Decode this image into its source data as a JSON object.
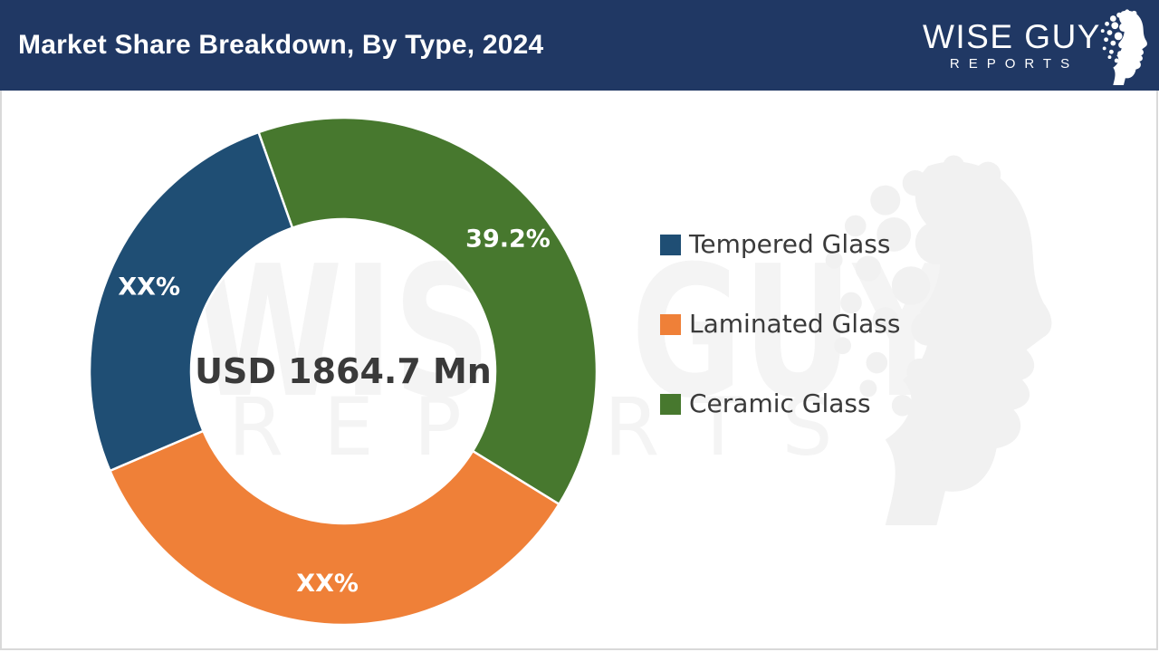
{
  "header": {
    "title": "Market Share Breakdown, By Type, 2024",
    "bg_color": "#203864",
    "logo": {
      "line1": "WISE GUY",
      "line2": "REPORTS"
    }
  },
  "watermark": {
    "line1": "WISE GUY",
    "line2": "REPORTS"
  },
  "chart_data": {
    "type": "pie",
    "subtype": "donut",
    "title": "Market Share Breakdown, By Type, 2024",
    "center_label": "USD 1864.7 Mn",
    "legend_position": "right",
    "start_angle": -19.5,
    "segments": [
      {
        "name": "Ceramic Glass",
        "pct": 39.2,
        "display_label": "39.2%",
        "color": "#47782e"
      },
      {
        "name": "Laminated Glass",
        "pct": 34.8,
        "display_label": "XX%",
        "color": "#ef8038"
      },
      {
        "name": "Tempered Glass",
        "pct": 26.0,
        "display_label": "XX%",
        "color": "#1f4e74"
      }
    ],
    "legend": [
      {
        "label": "Tempered Glass",
        "color": "#1f4e74"
      },
      {
        "label": "Laminated Glass",
        "color": "#ef8038"
      },
      {
        "label": "Ceramic Glass",
        "color": "#47782e"
      }
    ]
  }
}
